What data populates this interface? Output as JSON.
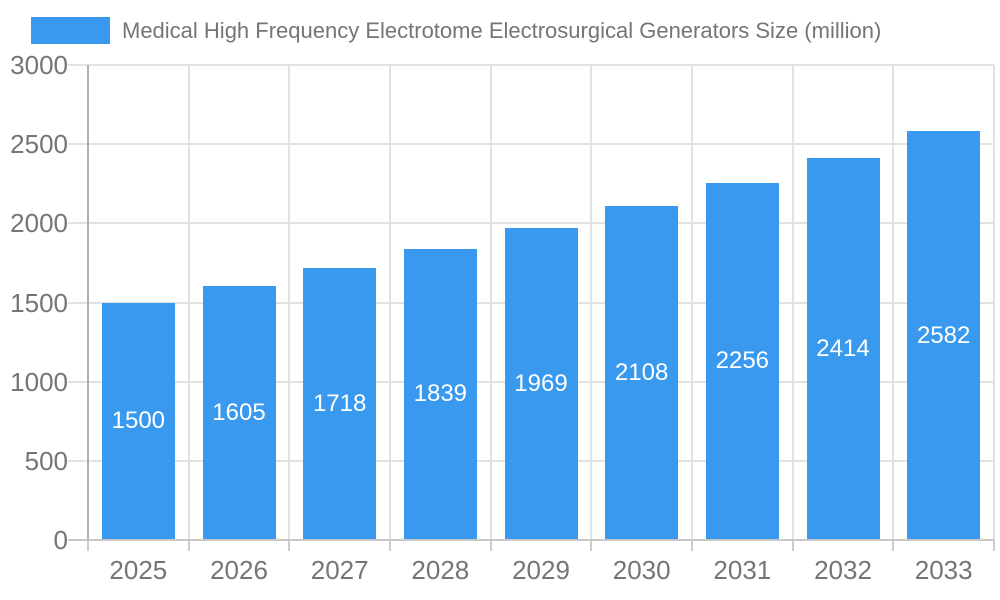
{
  "legend": {
    "label": "Medical High Frequency Electrotome Electrosurgical Generators Size (million)"
  },
  "chart_data": {
    "type": "bar",
    "title": "Medical High Frequency Electrotome Electrosurgical Generators Size (million)",
    "categories": [
      "2025",
      "2026",
      "2027",
      "2028",
      "2029",
      "2030",
      "2031",
      "2032",
      "2033"
    ],
    "values": [
      1500,
      1605,
      1718,
      1839,
      1969,
      2108,
      2256,
      2414,
      2582
    ],
    "value_labels": [
      "1500",
      "1605",
      "1718",
      "1839",
      "1969",
      "2108",
      "2256",
      "2414",
      "2582"
    ],
    "xlabel": "",
    "ylabel": "",
    "ylim": [
      0,
      3000
    ],
    "yticks": [
      0,
      500,
      1000,
      1500,
      2000,
      2500,
      3000
    ],
    "grid": true,
    "legend_position": "top-left",
    "colors": {
      "bar": "#3999EE",
      "value_label": "#ffffff",
      "axis_label": "#757575",
      "title": "#757575",
      "gridline": "#e2e2e2",
      "baseline": "#c8c8c8",
      "y_axis_line": "#b0b0b0",
      "tick": "#cccccc"
    }
  }
}
